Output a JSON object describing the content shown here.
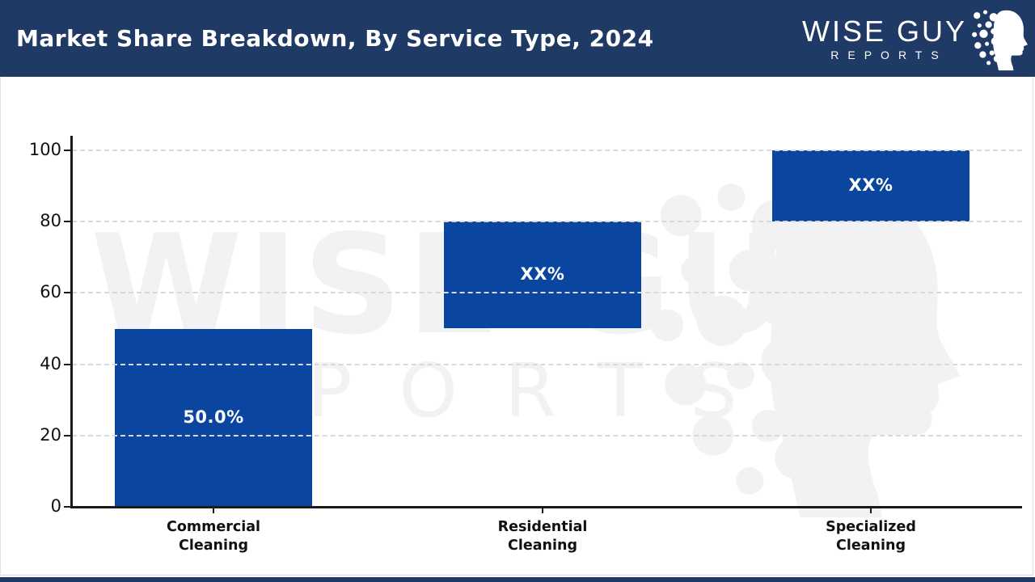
{
  "header": {
    "title": "Market Share Breakdown, By Service Type, 2024",
    "logo": {
      "brand_line1": "WISE GUY",
      "brand_line2": "REPORTS"
    }
  },
  "watermark": {
    "line1": "WISE GUY",
    "line2": "REPORTS"
  },
  "chart_data": {
    "type": "bar",
    "subtype": "floating-segment-waterfall",
    "title": "Market Share Breakdown, By Service Type, 2024",
    "categories": [
      "Commercial Cleaning",
      "Residential Cleaning",
      "Specialized Cleaning"
    ],
    "bars": [
      {
        "category": "Commercial Cleaning",
        "start": 0,
        "end": 50,
        "label": "50.0%"
      },
      {
        "category": "Residential Cleaning",
        "start": 50,
        "end": 80,
        "label": "XX%"
      },
      {
        "category": "Specialized Cleaning",
        "start": 80,
        "end": 100,
        "label": "XX%"
      }
    ],
    "yticks": [
      0,
      20,
      40,
      60,
      80,
      100
    ],
    "ylim": [
      0,
      105
    ],
    "xlabel": "",
    "ylabel": "",
    "grid": true,
    "gridline_style": "dashed",
    "legend": false
  },
  "colors": {
    "header_bg": "#203a66",
    "bar_fill": "#0a46a0",
    "bar_label": "#ffffff",
    "gridline": "#d9d9dc",
    "axis": "#1a1a1a",
    "watermark": "#f2f2f5"
  }
}
